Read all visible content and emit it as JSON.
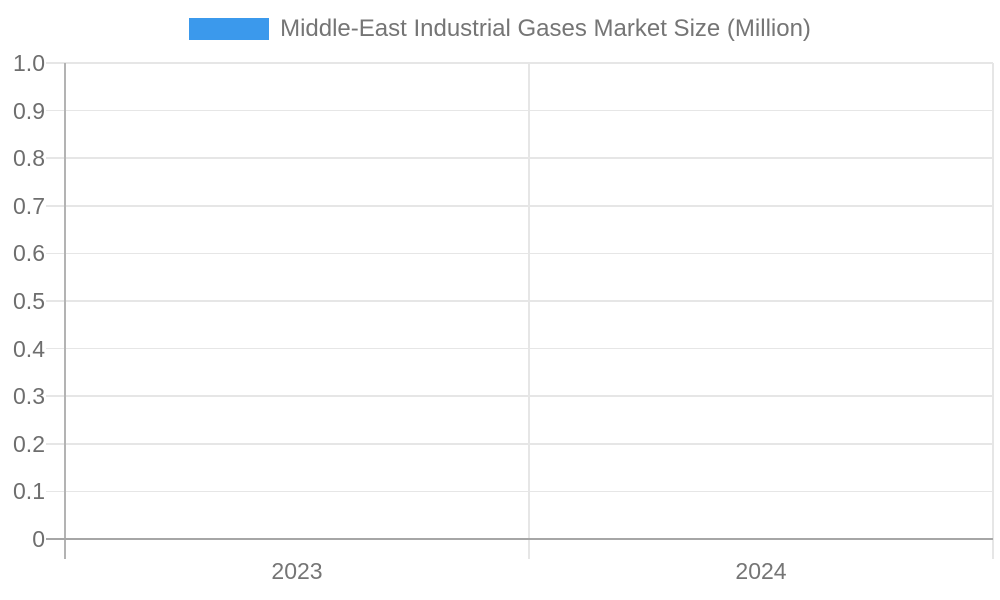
{
  "legend": {
    "label": "Middle-East Industrial Gases Market Size (Million)"
  },
  "chart_data": {
    "type": "bar",
    "title": "Middle-East Industrial Gases Market Size (Million)",
    "categories": [
      "2023",
      "2024"
    ],
    "series": [
      {
        "name": "Middle-East Industrial Gases Market Size (Million)",
        "values": [
          null,
          null
        ]
      }
    ],
    "xlabel": "",
    "ylabel": "",
    "ylim": [
      0,
      1.0
    ],
    "ytick_step": 0.1,
    "ytick_labels": [
      "1.0",
      "0.9",
      "0.8",
      "0.7",
      "0.6",
      "0.5",
      "0.4",
      "0.3",
      "0.2",
      "0.1",
      "0"
    ],
    "grid": true,
    "legend_position": "top-center",
    "colors": {
      "series_blue": "#3b99ec",
      "gridline": "#e6e6e6",
      "y_axis_line": "#b3b3b3",
      "x_axis_line": "#a6a6a6",
      "tick_label_text": "#6e6e6e",
      "legend_text": "#757575"
    }
  }
}
